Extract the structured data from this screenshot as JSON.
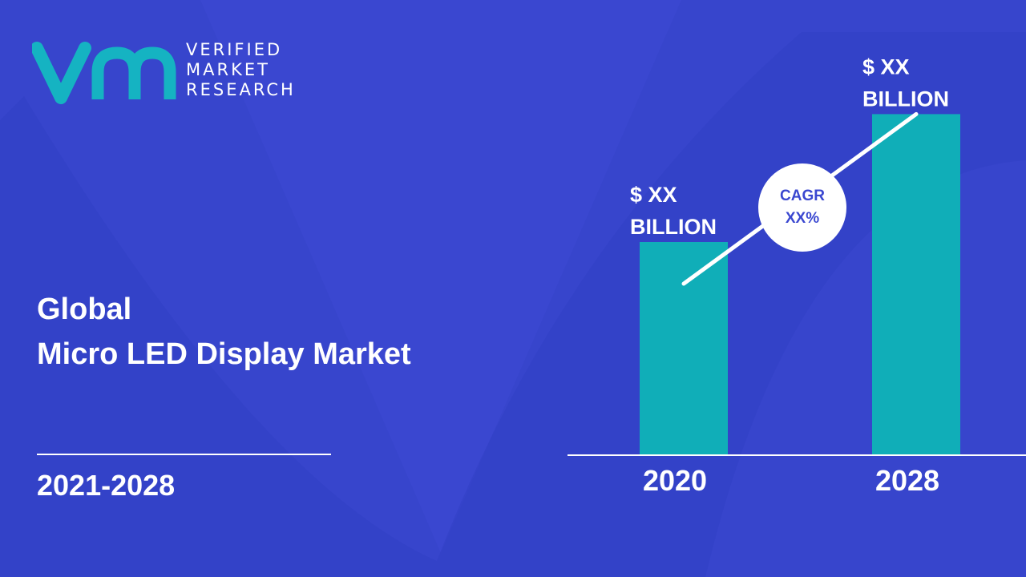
{
  "brand": {
    "logo_mark": "VMR",
    "line1": "VERIFIED",
    "line2": "MARKET",
    "line3": "RESEARCH"
  },
  "title": {
    "line1": "Global",
    "line2": "Micro LED Display Market"
  },
  "period": "2021-2028",
  "cagr": {
    "label": "CAGR",
    "value": "XX%"
  },
  "colors": {
    "background": "#3a47d0",
    "bar": "#10aeb8",
    "text": "#ffffff",
    "logo": "#15b3c2"
  },
  "chart_data": {
    "type": "bar",
    "categories": [
      "2020",
      "2028"
    ],
    "values": [
      50,
      80
    ],
    "data_labels": [
      [
        "$ XX",
        "BILLION"
      ],
      [
        "$ XX",
        "BILLION"
      ]
    ],
    "ylim": [
      0,
      100
    ],
    "trend_line": true,
    "grid": false
  }
}
